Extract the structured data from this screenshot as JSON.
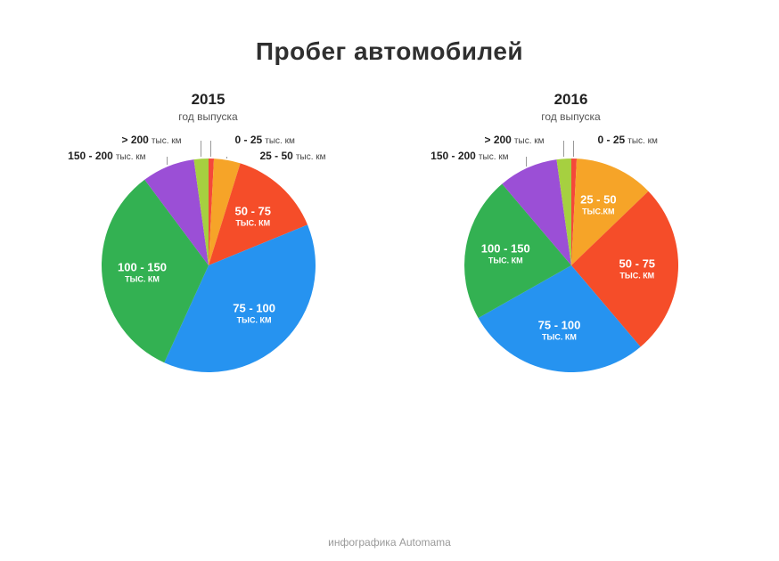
{
  "title": "Пробег автомобилей",
  "footer": "инфографика Automama",
  "unit": "тыс. км",
  "unit_upper": "ТЫС. КМ",
  "subtitle": "год выпуска",
  "colors": {
    "c0_25": "#f5483a",
    "c25_50": "#f6a428",
    "c50_75": "#f54d29",
    "c75_100": "#2693f0",
    "c100_150": "#33b152",
    "c150_200": "#9b4fd6",
    "c200p": "#a6d040"
  },
  "charts": [
    {
      "year": "2015",
      "slices": [
        {
          "key": "c0_25",
          "label": "0 - 25",
          "value": 0.8
        },
        {
          "key": "c25_50",
          "label": "25 - 50",
          "value": 4.0
        },
        {
          "key": "c50_75",
          "label": "50 - 75",
          "value": 14.0
        },
        {
          "key": "c75_100",
          "label": "75 - 100",
          "value": 38.0
        },
        {
          "key": "c100_150",
          "label": "100 - 150",
          "value": 33.0
        },
        {
          "key": "c150_200",
          "label": "150 - 200",
          "value": 8.0
        },
        {
          "key": "c200p",
          "label": "> 200",
          "value": 2.2
        }
      ]
    },
    {
      "year": "2016",
      "slices": [
        {
          "key": "c0_25",
          "label": "0 - 25",
          "value": 0.8
        },
        {
          "key": "c25_50",
          "label": "25 - 50",
          "value": 12.0
        },
        {
          "key": "c50_75",
          "label": "50 - 75",
          "value": 26.0
        },
        {
          "key": "c75_100",
          "label": "75 - 100",
          "value": 28.0
        },
        {
          "key": "c100_150",
          "label": "100 - 150",
          "value": 22.0
        },
        {
          "key": "c150_200",
          "label": "150 - 200",
          "value": 9.0
        },
        {
          "key": "c200p",
          "label": "> 200",
          "value": 2.2
        }
      ]
    }
  ],
  "pie": {
    "radius": 120,
    "title_fontsize": 28,
    "year_fontsize": 17,
    "sub_fontsize": 12,
    "inner_label_fontsize": 13,
    "inner_unit_fontsize": 9,
    "callout_fontsize": 11,
    "background": "#ffffff",
    "callout_line_color": "#9e9e9e"
  }
}
